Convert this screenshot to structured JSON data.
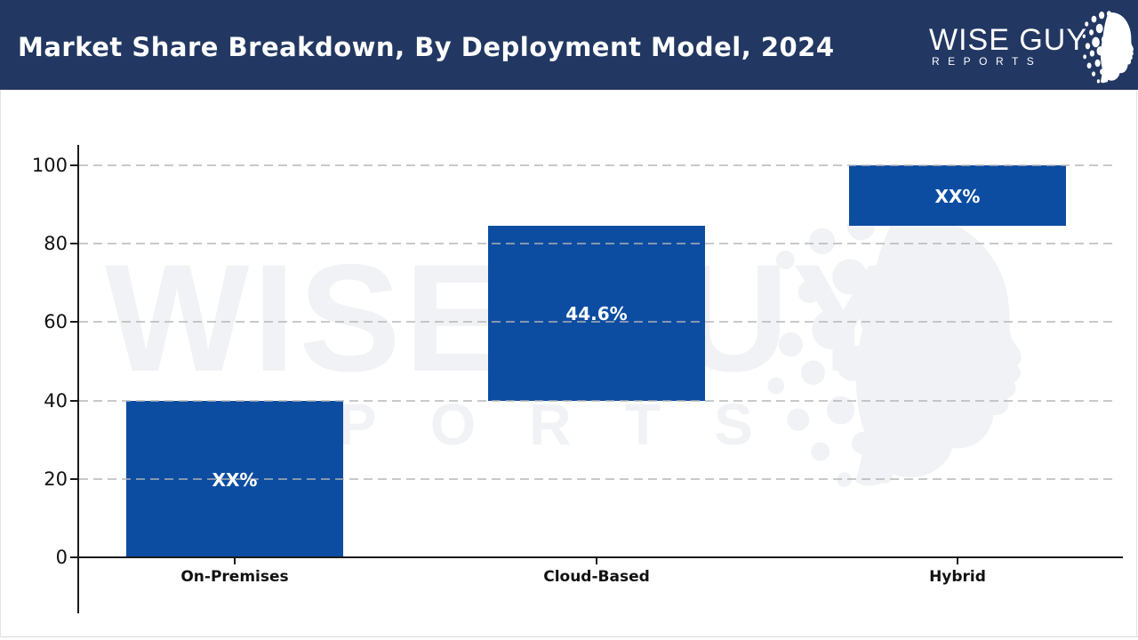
{
  "header": {
    "title": "Market Share Breakdown, By Deployment Model, 2024",
    "logo": {
      "wordmark": "WISE GUY",
      "subtext": "REPORTS",
      "head_icon": "dotted-head-profile-icon"
    }
  },
  "watermark": {
    "line1": "WISE GUY",
    "line2": "REPORTS"
  },
  "chart_data": {
    "type": "bar",
    "subtype": "floating-waterfall-segments",
    "title": "Market Share Breakdown, By Deployment Model, 2024",
    "categories": [
      "On-Premises",
      "Cloud-Based",
      "Hybrid"
    ],
    "series": [
      {
        "name": "Market share (%)",
        "segments": [
          {
            "category": "On-Premises",
            "from": 0,
            "to": 40,
            "label": "XX%"
          },
          {
            "category": "Cloud-Based",
            "from": 40,
            "to": 84.6,
            "label": "44.6%"
          },
          {
            "category": "Hybrid",
            "from": 84.6,
            "to": 100,
            "label": "XX%"
          }
        ]
      }
    ],
    "xlabel": "",
    "ylabel": "",
    "ylim": [
      0,
      100
    ],
    "yticks": [
      0,
      20,
      40,
      60,
      80,
      100
    ],
    "legend": "none",
    "grid": "horizontal-dashed",
    "colors": {
      "bar": "#0c4da2",
      "bar_label": "#ffffff",
      "grid": "#c8c8c8",
      "axis": "#1a1a1a",
      "header_bg": "#223862",
      "watermark": "#f1f2f5"
    }
  }
}
